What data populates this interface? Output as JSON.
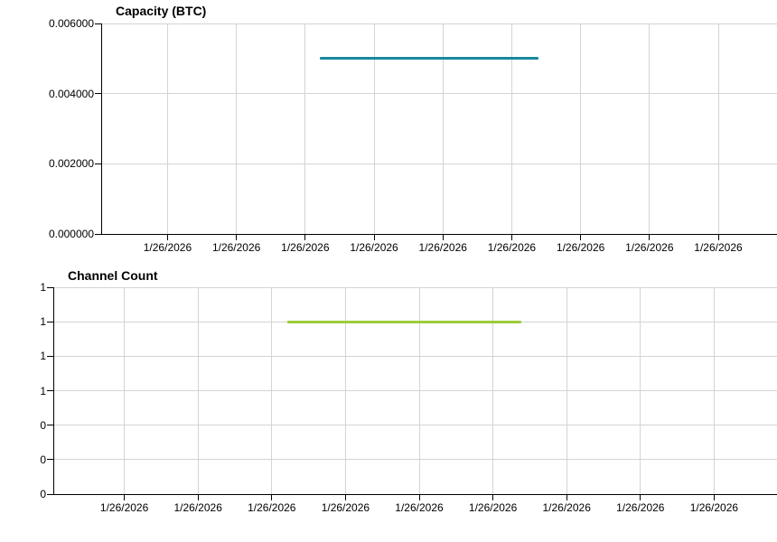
{
  "colors": {
    "background": "#FFFFFF",
    "grid": "#D4D4D4",
    "axis": "#000000",
    "text": "#000000",
    "capacity_series": "#17899B",
    "channel_count_series": "#9CCC3B"
  },
  "chart_data": [
    {
      "type": "line",
      "title": "Capacity (BTC)",
      "xlabel": "",
      "ylabel": "",
      "ylim": [
        0,
        0.006
      ],
      "grid": true,
      "legend": "none",
      "y_ticks": [
        {
          "value": 0.006,
          "label": "0.006000"
        },
        {
          "value": 0.004,
          "label": "0.004000"
        },
        {
          "value": 0.002,
          "label": "0.002000"
        },
        {
          "value": 0.0,
          "label": "0.000000"
        }
      ],
      "x_tick_labels": [
        "1/26/2026",
        "1/26/2026",
        "1/26/2026",
        "1/26/2026",
        "1/26/2026",
        "1/26/2026",
        "1/26/2026",
        "1/26/2026",
        "1/26/2026"
      ],
      "series": [
        {
          "name": "Capacity (BTC)",
          "color": "#17899B",
          "value": 0.005,
          "x_span_fraction": [
            0.322,
            0.646
          ],
          "description": "flat horizontal line at 0.005 BTC spanning part of 1/26/2026"
        }
      ]
    },
    {
      "type": "line",
      "title": "Channel Count",
      "xlabel": "",
      "ylabel": "",
      "ylim": [
        0,
        1.2
      ],
      "grid": true,
      "legend": "none",
      "y_ticks": [
        {
          "value": 1.2,
          "label": "1"
        },
        {
          "value": 1.0,
          "label": "1"
        },
        {
          "value": 0.8,
          "label": "1"
        },
        {
          "value": 0.6,
          "label": "1"
        },
        {
          "value": 0.4,
          "label": "0"
        },
        {
          "value": 0.2,
          "label": "0"
        },
        {
          "value": 0.0,
          "label": "0"
        }
      ],
      "x_tick_labels": [
        "1/26/2026",
        "1/26/2026",
        "1/26/2026",
        "1/26/2026",
        "1/26/2026",
        "1/26/2026",
        "1/26/2026",
        "1/26/2026",
        "1/26/2026"
      ],
      "series": [
        {
          "name": "Channel Count",
          "color": "#9CCC3B",
          "value": 1,
          "x_span_fraction": [
            0.322,
            0.646
          ],
          "description": "flat horizontal line at 1 channel spanning part of 1/26/2026"
        }
      ]
    }
  ]
}
